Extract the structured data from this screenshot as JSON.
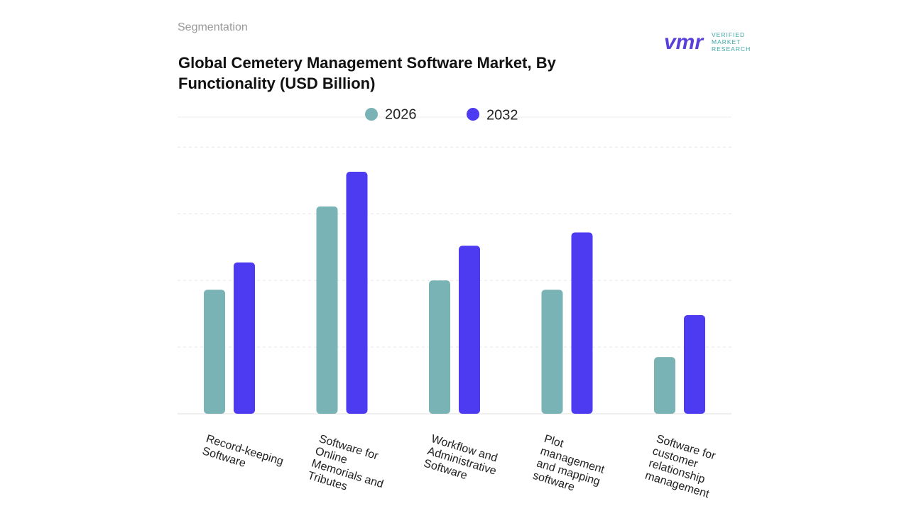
{
  "header": "Segmentation",
  "logo": {
    "mark": "vmr",
    "lines": [
      "VERIFIED",
      "MARKET",
      "RESEARCH"
    ]
  },
  "chart_data": {
    "type": "bar",
    "title": "Global Cemetery Management Software Market, By Functionality (USD Billion)",
    "categories": [
      "Record-keeping Software",
      "Software for Online Memorials and Tributes",
      "Workflow and Administrative Software",
      "Plot management and mapping software",
      "Software for customer relationship management"
    ],
    "series": [
      {
        "name": "2026",
        "color": "#7ab3b5",
        "values": [
          1.86,
          3.11,
          2.0,
          1.86,
          0.85
        ]
      },
      {
        "name": "2032",
        "color": "#4c3bf0",
        "values": [
          2.27,
          3.63,
          2.52,
          2.72,
          1.48
        ]
      }
    ],
    "ylim": [
      0,
      4.45
    ],
    "yticks": [
      0,
      1,
      2,
      3,
      4
    ],
    "grid": true,
    "show_tick_labels": false
  }
}
